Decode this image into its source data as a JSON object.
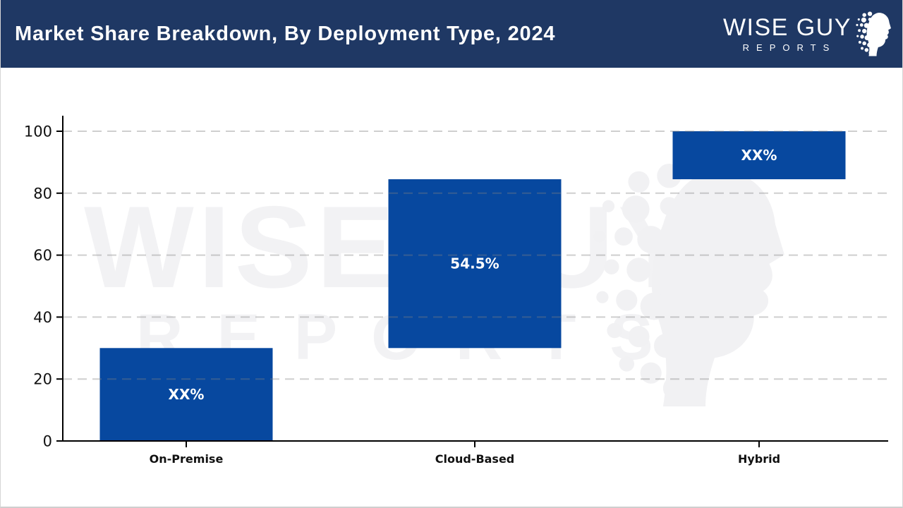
{
  "header": {
    "title": "Market Share Breakdown, By Deployment Type, 2024",
    "bg_color": "#1f3864",
    "logo": {
      "primary": "WISE GUY",
      "secondary": "REPORTS"
    }
  },
  "watermark": {
    "primary": "WISE GUY",
    "secondary": "REPORTS"
  },
  "chart_data": {
    "type": "bar",
    "subtype": "floating-segment-waterfall",
    "title": "Market Share Breakdown, By Deployment Type, 2024",
    "categories": [
      "On-Premise",
      "Cloud-Based",
      "Hybrid"
    ],
    "series": [
      {
        "name": "Market share (%)",
        "segments": [
          {
            "category": "On-Premise",
            "start": 0,
            "end": 30,
            "label": "XX%"
          },
          {
            "category": "Cloud-Based",
            "start": 30,
            "end": 84.5,
            "label": "54.5%"
          },
          {
            "category": "Hybrid",
            "start": 84.5,
            "end": 100,
            "label": "XX%"
          }
        ]
      }
    ],
    "xlabel": "",
    "ylabel": "",
    "ylim": [
      0,
      105
    ],
    "yticks": [
      0,
      20,
      40,
      60,
      80,
      100
    ],
    "grid": "horizontal dashed, drawn above bars",
    "legend": "none",
    "bar_color": "#07489f",
    "value_label_color": "#ffffff",
    "axis_color": "#000000",
    "gridline_color": "rgba(130,130,130,0.38)"
  }
}
